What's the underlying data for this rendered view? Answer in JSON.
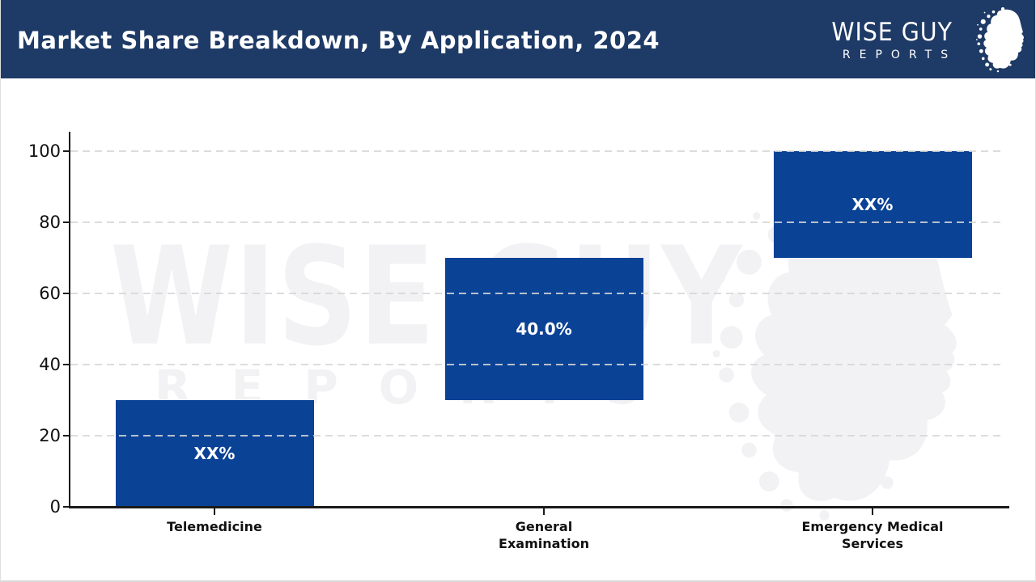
{
  "header": {
    "title": "Market Share Breakdown, By Application, 2024",
    "logo": {
      "wordmark": "WISE GUY",
      "reports": "REPORTS"
    }
  },
  "watermark": {
    "wordmark": "WISE GUY",
    "reports": "REPORTS"
  },
  "colors": {
    "header_bg": "#1e3a66",
    "bar": "#0a4296",
    "bar_label": "#ffffff",
    "gridline": "#d6d6d6",
    "axis": "#1a1a1a",
    "watermark": "#f2f2f4"
  },
  "chart_data": {
    "type": "bar",
    "variant": "floating-range-bars",
    "title": "Market Share Breakdown, By Application, 2024",
    "xlabel": "",
    "ylabel": "",
    "ylim": [
      0,
      100
    ],
    "yticks": [
      0,
      20,
      40,
      60,
      80,
      100
    ],
    "grid": "horizontal dashed, drawn over bars",
    "legend": "none",
    "categories": [
      "Telemedicine",
      "General Examination",
      "Emergency Medical Services"
    ],
    "category_label_lines": [
      [
        "Telemedicine"
      ],
      [
        "General",
        "Examination"
      ],
      [
        "Emergency Medical",
        "Services"
      ]
    ],
    "bars": [
      {
        "category": "Telemedicine",
        "from": 0,
        "to": 30,
        "label": "XX%"
      },
      {
        "category": "General Examination",
        "from": 30,
        "to": 70,
        "label": "40.0%"
      },
      {
        "category": "Emergency Medical Services",
        "from": 70,
        "to": 100,
        "label": "XX%"
      }
    ]
  }
}
